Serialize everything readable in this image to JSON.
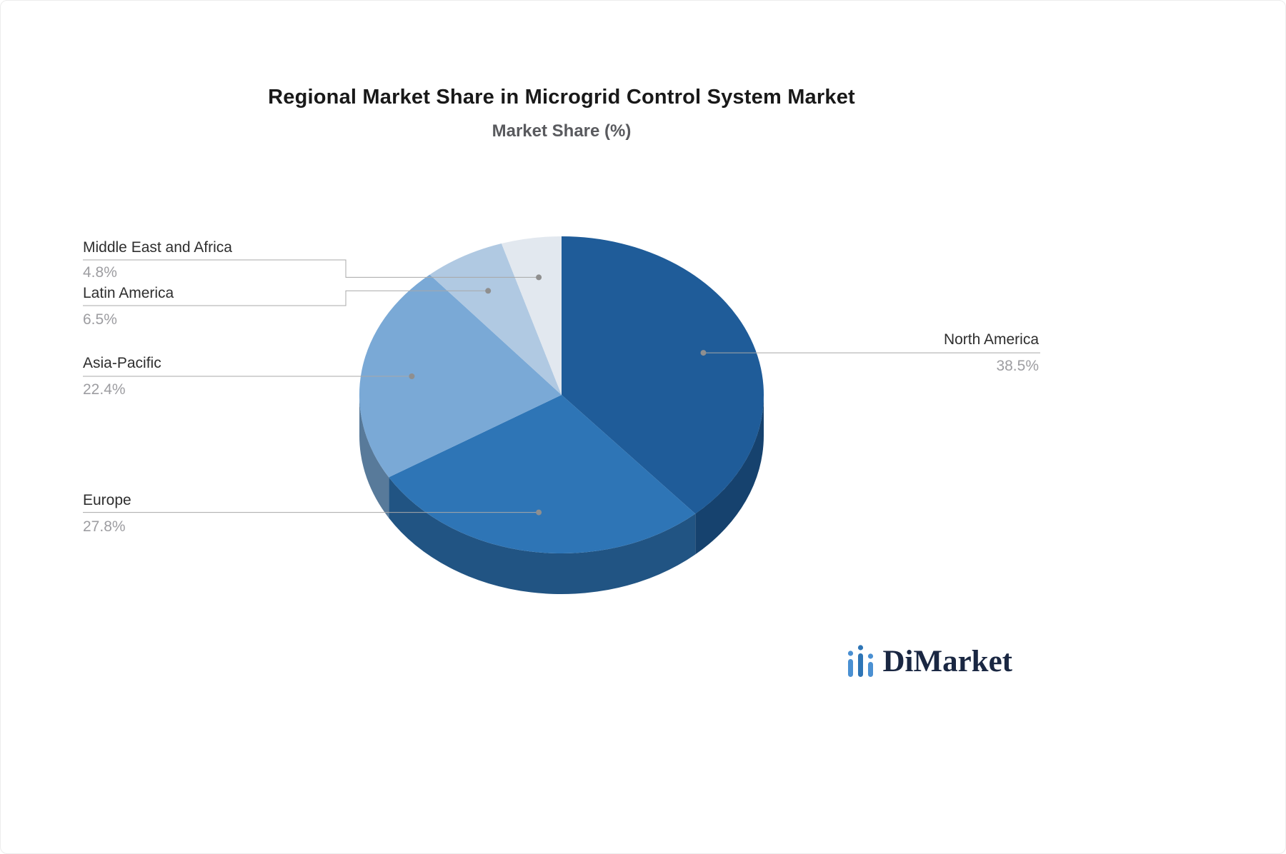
{
  "title": "Regional Market Share in Microgrid Control System Market",
  "subtitle": "Market Share (%)",
  "brand": {
    "name": "DiMarket"
  },
  "chart_data": {
    "type": "pie",
    "title": "Regional Market Share in Microgrid Control System Market",
    "subtitle": "Market Share (%)",
    "unit": "%",
    "style": "3d",
    "start_angle_deg": 0,
    "direction": "clockwise",
    "labels": "outside-with-leader-lines",
    "legend": "none",
    "slices": [
      {
        "label": "North America",
        "value": 38.5,
        "display": "38.5%",
        "color": "#1f5c99"
      },
      {
        "label": "Europe",
        "value": 27.8,
        "display": "27.8%",
        "color": "#2e75b6"
      },
      {
        "label": "Asia-Pacific",
        "value": 22.4,
        "display": "22.4%",
        "color": "#7aa9d6"
      },
      {
        "label": "Latin America",
        "value": 6.5,
        "display": "6.5%",
        "color": "#b0c9e2"
      },
      {
        "label": "Middle East and Africa",
        "value": 4.8,
        "display": "4.8%",
        "color": "#e2e8ef"
      }
    ]
  }
}
